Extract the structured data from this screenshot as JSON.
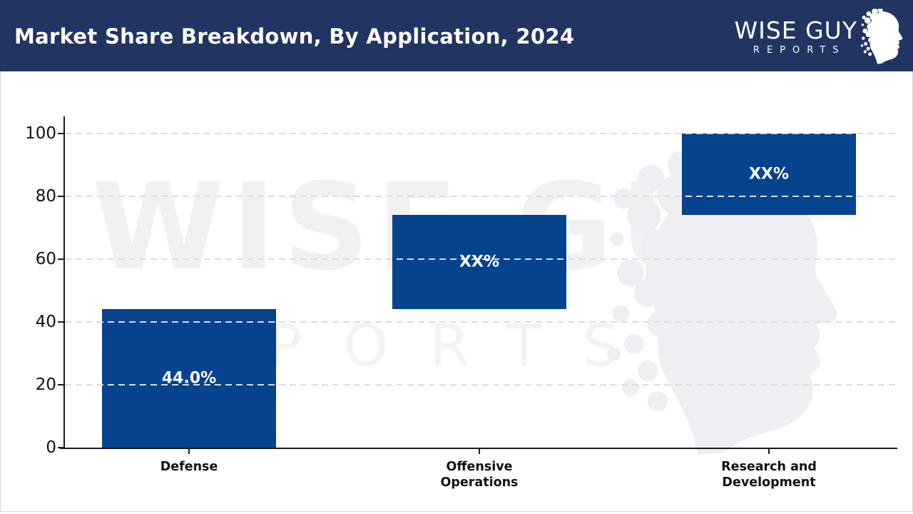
{
  "header": {
    "title": "Market Share Breakdown, By Application, 2024",
    "bg_color": "#223461",
    "logo": {
      "wordmark": "WISE GUY",
      "sub": "REPORTS"
    }
  },
  "watermark": {
    "wordmark": "WISE GUY",
    "sub": "REPORTS"
  },
  "chart_data": {
    "type": "bar",
    "subtype": "floating-waterfall",
    "title": "Market Share Breakdown, By Application, 2024",
    "categories": [
      "Defense",
      "Offensive Operations",
      "Research and Development"
    ],
    "category_display": [
      "Defense",
      "Offensive\nOperations",
      "Research and\nDevelopment"
    ],
    "segments": [
      {
        "category": "Defense",
        "start": 0,
        "end": 44,
        "value_label": "44.0%"
      },
      {
        "category": "Offensive Operations",
        "start": 44,
        "end": 74,
        "value_label": "XX%"
      },
      {
        "category": "Research and Development",
        "start": 74,
        "end": 100,
        "value_label": "XX%"
      }
    ],
    "yticks": [
      0,
      20,
      40,
      60,
      80,
      100
    ],
    "ylim": [
      0,
      104
    ],
    "xlabel": "",
    "ylabel": "",
    "grid": true,
    "grid_style": "dashed",
    "legend": "none",
    "bar_color": "#05438f",
    "bar_label_color": "#ffffff",
    "axis_color": "#1a1a1a",
    "unit": "%"
  }
}
